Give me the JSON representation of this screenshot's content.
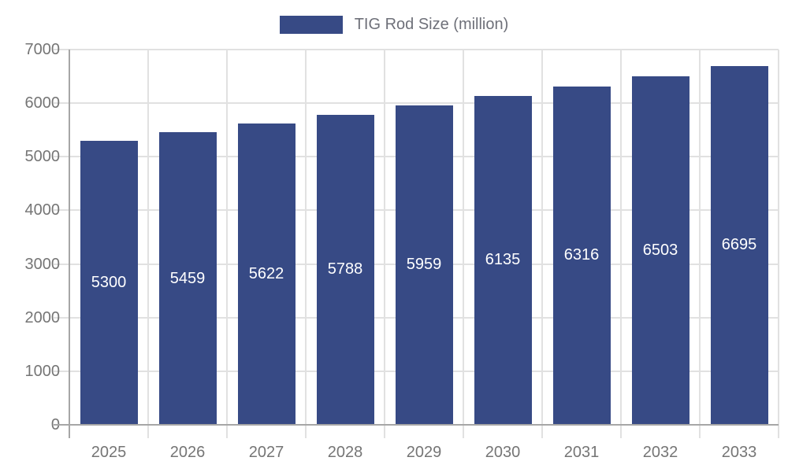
{
  "chart_data": {
    "type": "bar",
    "title": "",
    "legend": "TIG Rod Size (million)",
    "categories": [
      "2025",
      "2026",
      "2027",
      "2028",
      "2029",
      "2030",
      "2031",
      "2032",
      "2033"
    ],
    "values": [
      5300,
      5459,
      5622,
      5788,
      5959,
      6135,
      6316,
      6503,
      6695
    ],
    "xlabel": "",
    "ylabel": "",
    "ylim": [
      0,
      7000
    ],
    "yticks": [
      0,
      1000,
      2000,
      3000,
      4000,
      5000,
      6000,
      7000
    ],
    "grid": true,
    "legend_position": "top-center",
    "bar_label_position": "inside-center",
    "colors": {
      "bar": "#374a85",
      "bar_label": "#ffffff",
      "axis_label": "#757575",
      "legend_text": "#6e7079",
      "gridline": "#e1e1e1",
      "axis_line": "#a6a6a6",
      "background": "#ffffff"
    }
  }
}
